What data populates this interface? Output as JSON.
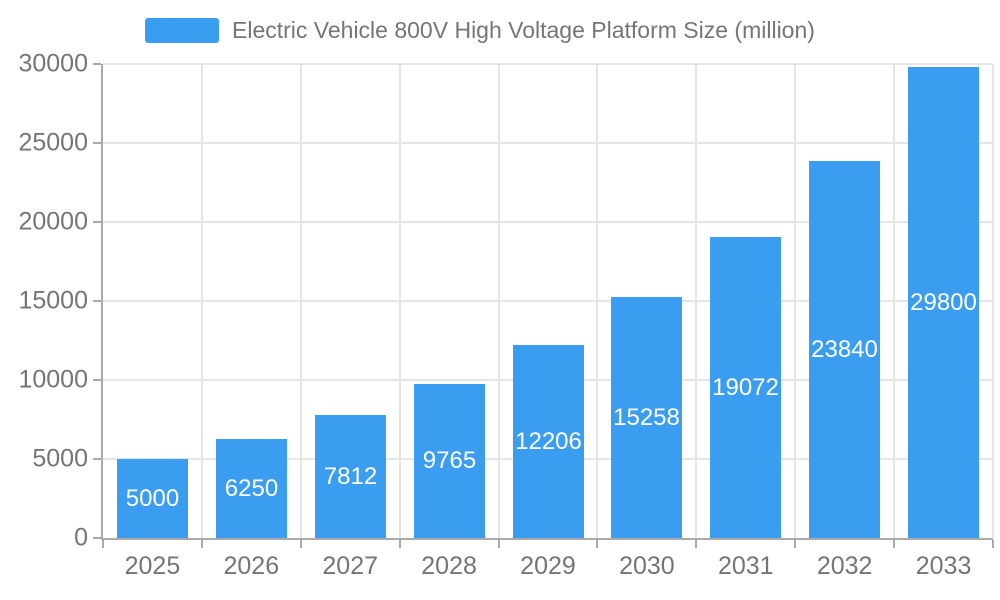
{
  "chart_data": {
    "type": "bar",
    "series_name": "Electric Vehicle 800V High Voltage Platform Size (million)",
    "categories": [
      "2025",
      "2026",
      "2027",
      "2028",
      "2029",
      "2030",
      "2031",
      "2032",
      "2033"
    ],
    "values": [
      5000,
      6250,
      7812,
      9765,
      12206,
      15258,
      19072,
      23840,
      29800
    ],
    "ylim": [
      0,
      30000
    ],
    "y_ticks": [
      0,
      5000,
      10000,
      15000,
      20000,
      25000,
      30000
    ],
    "xlabel": "",
    "ylabel": "",
    "grid": true,
    "legend_position": "top-left",
    "value_labels": "inside-center",
    "colors": {
      "bar": "#3B9DF0",
      "bar_label": "#FFFFFF",
      "axis_line": "#AAAAAA",
      "grid_line": "#E5E5E5",
      "tick_text": "#757575",
      "legend_text": "#757575"
    }
  }
}
